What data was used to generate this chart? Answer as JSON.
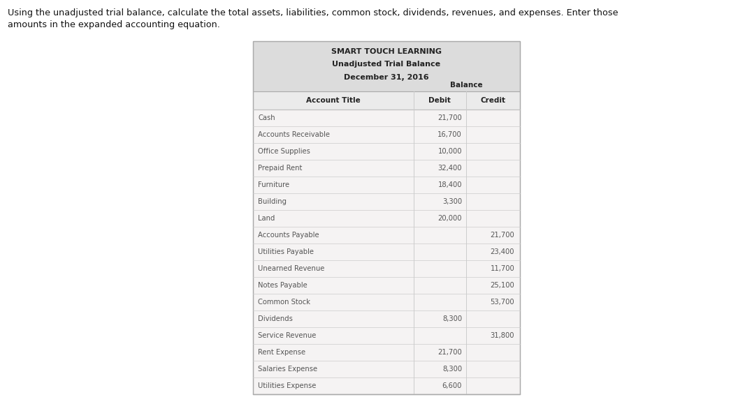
{
  "title_line1": "SMART TOUCH LEARNING",
  "title_line2": "Unadjusted Trial Balance",
  "title_line3": "December 31, 2016",
  "header_balance": "Balance",
  "header_account": "Account Title",
  "header_debit": "Debit",
  "header_credit": "Credit",
  "rows": [
    {
      "account": "Cash",
      "debit": "21,700",
      "credit": ""
    },
    {
      "account": "Accounts Receivable",
      "debit": "16,700",
      "credit": ""
    },
    {
      "account": "Office Supplies",
      "debit": "10,000",
      "credit": ""
    },
    {
      "account": "Prepaid Rent",
      "debit": "32,400",
      "credit": ""
    },
    {
      "account": "Furniture",
      "debit": "18,400",
      "credit": ""
    },
    {
      "account": "Building",
      "debit": "3,300",
      "credit": ""
    },
    {
      "account": "Land",
      "debit": "20,000",
      "credit": ""
    },
    {
      "account": "Accounts Payable",
      "debit": "",
      "credit": "21,700"
    },
    {
      "account": "Utilities Payable",
      "debit": "",
      "credit": "23,400"
    },
    {
      "account": "Unearned Revenue",
      "debit": "",
      "credit": "11,700"
    },
    {
      "account": "Notes Payable",
      "debit": "",
      "credit": "25,100"
    },
    {
      "account": "Common Stock",
      "debit": "",
      "credit": "53,700"
    },
    {
      "account": "Dividends",
      "debit": "8,300",
      "credit": ""
    },
    {
      "account": "Service Revenue",
      "debit": "",
      "credit": "31,800"
    },
    {
      "account": "Rent Expense",
      "debit": "21,700",
      "credit": ""
    },
    {
      "account": "Salaries Expense",
      "debit": "8,300",
      "credit": ""
    },
    {
      "account": "Utilities Expense",
      "debit": "6,600",
      "credit": ""
    }
  ],
  "description_line1": "Using the unadjusted trial balance, calculate the total assets, liabilities, common stock, dividends, revenues, and expenses. Enter those",
  "description_line2": "amounts in the expanded accounting equation.",
  "header_bg": "#dcdcdc",
  "col_header_bg": "#ebebeb",
  "row_bg": "#f5f3f3",
  "border_color": "#aaaaaa",
  "divider_color": "#cccccc",
  "text_dark": "#222222",
  "text_mid": "#555555"
}
